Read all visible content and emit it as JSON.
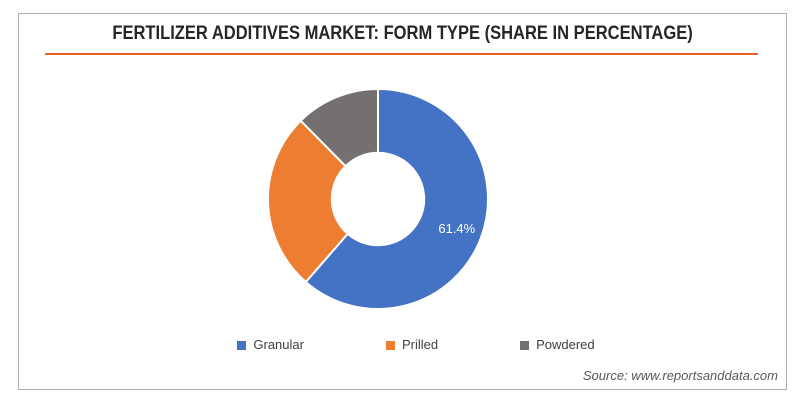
{
  "header": {
    "title": "FERTILIZER ADDITIVES MARKET: FORM TYPE (SHARE IN PERCENTAGE)"
  },
  "footer": {
    "source": "Source: www.reportsanddata.com"
  },
  "theme": {
    "accent_line": "#e7622e",
    "frame_border": "#aeaeae",
    "title_text": "#262626",
    "legend_text": "#404040",
    "source_text": "#595959",
    "data_label_text": "#ffffff"
  },
  "chart_data": {
    "type": "pie",
    "subtype": "donut",
    "title": "FERTILIZER ADDITIVES MARKET: FORM TYPE (SHARE IN PERCENTAGE)",
    "categories": [
      "Granular",
      "Prilled",
      "Powdered"
    ],
    "values": [
      61.4,
      26.2,
      12.4
    ],
    "colors": [
      "#4472c4",
      "#ed7d31",
      "#757070"
    ],
    "data_labels": [
      "61.4%",
      "",
      ""
    ],
    "start_angle": 0,
    "donut_hole_ratio": 0.42,
    "legend_position": "bottom",
    "grid": false
  }
}
